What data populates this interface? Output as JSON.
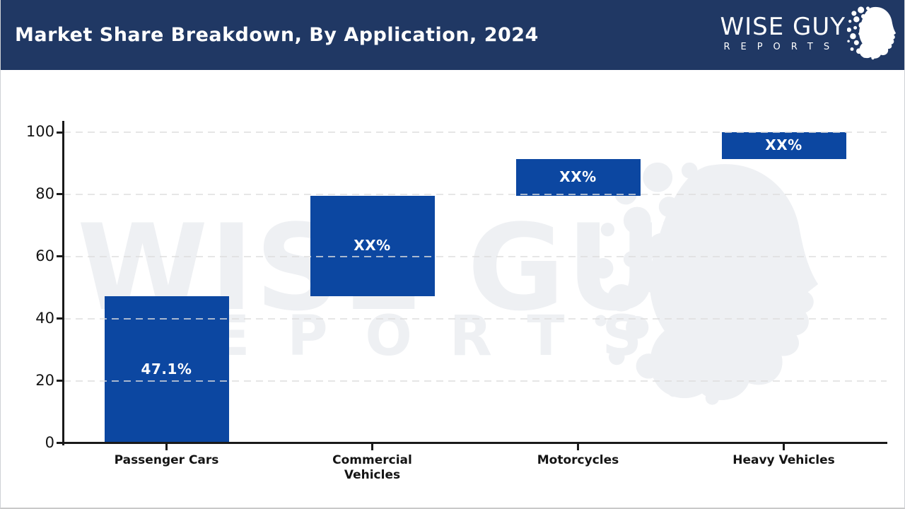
{
  "header": {
    "title": "Market Share Breakdown, By Application, 2024",
    "brand_name": "WISE GUY",
    "brand_subtitle": "REPORTS"
  },
  "watermark": {
    "text_primary": "WISE GUY",
    "text_secondary": "REPORTS"
  },
  "chart_data": {
    "type": "bar",
    "subtype": "waterfall",
    "title": "Market Share Breakdown, By Application, 2024",
    "categories": [
      "Passenger Cars",
      "Commercial Vehicles",
      "Motorcycles",
      "Heavy Vehicles"
    ],
    "category_lines": [
      [
        "Passenger Cars"
      ],
      [
        "Commercial",
        "Vehicles"
      ],
      [
        "Motorcycles"
      ],
      [
        "Heavy Vehicles"
      ]
    ],
    "segments": [
      {
        "category": "Passenger Cars",
        "start": 0,
        "end": 47.1,
        "label": "47.1%"
      },
      {
        "category": "Commercial Vehicles",
        "start": 47.1,
        "end": 79.5,
        "label": "XX%"
      },
      {
        "category": "Motorcycles",
        "start": 79.5,
        "end": 91.3,
        "label": "XX%"
      },
      {
        "category": "Heavy Vehicles",
        "start": 91.3,
        "end": 100,
        "label": "XX%"
      }
    ],
    "ylim": [
      0,
      100
    ],
    "yticks": [
      0,
      20,
      40,
      60,
      80,
      100
    ],
    "grid": "horizontal-dashed",
    "legend": "none",
    "bar_color": "#0c47a1",
    "bar_label_color": "#ffffff"
  },
  "colors": {
    "header_bg": "#203864",
    "header_text": "#ffffff",
    "axis": "#1a1a1a",
    "tick_text": "#141414",
    "grid": "#dedede",
    "watermark": "#eef0f3",
    "background": "#ffffff"
  }
}
